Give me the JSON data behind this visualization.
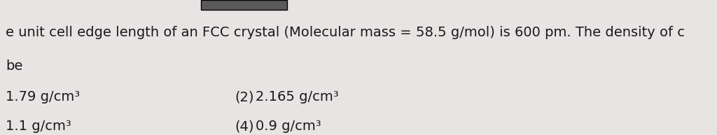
{
  "bg_color": "#e8e4e4",
  "top_bar_color": "#5a5a5a",
  "line1": "e unit cell edge length of an FCC crystal (Molecular mass = 58.5 g/mol) is 600 pm. The density of c",
  "line2": "be",
  "option1_text": "1.79 g/cm³",
  "option2_label": "(2)",
  "option2_text": "2.165 g/cm³",
  "option3_text": "1.1 g/cm³",
  "option4_label": "(4)",
  "option4_text": "0.9 g/cm³",
  "font_size_main": 14,
  "font_size_options": 14,
  "text_color": "#1a1a1a"
}
